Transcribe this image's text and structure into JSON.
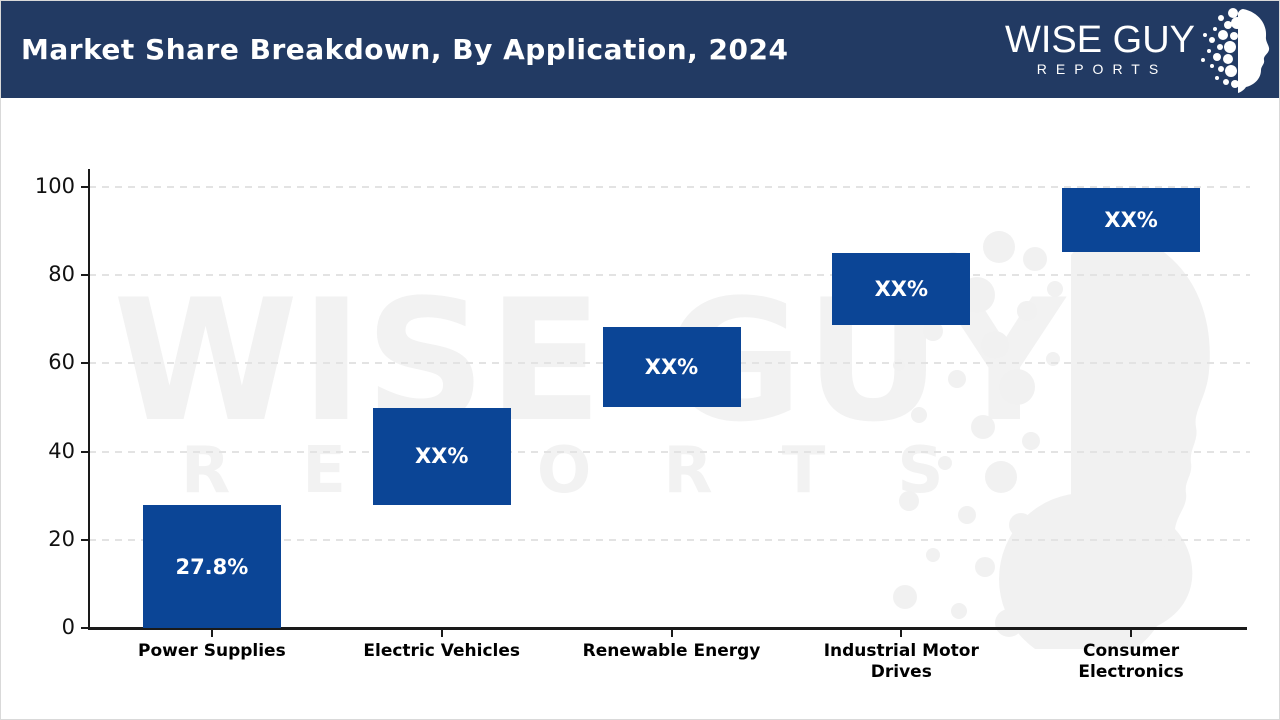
{
  "header": {
    "title": "Market Share Breakdown, By Application, 2024",
    "logo": {
      "line1": "WISE GUY",
      "line2": "REPORTS"
    }
  },
  "watermark": {
    "line1": "WISE GUY",
    "line2": "REPORTS"
  },
  "colors": {
    "header_bg": "#223a63",
    "bar": "#0b4596",
    "grid": "#e3e3e3",
    "axis": "#1a1a1a",
    "bar_label": "#ffffff",
    "watermark": "#f2f2f2"
  },
  "chart_data": {
    "type": "bar",
    "subtype": "waterfall",
    "title": "Market Share Breakdown, By Application, 2024",
    "categories": [
      "Power Supplies",
      "Electric Vehicles",
      "Renewable Energy",
      "Industrial Motor Drives",
      "Consumer Electronics"
    ],
    "category_lines": [
      [
        "Power Supplies"
      ],
      [
        "Electric Vehicles"
      ],
      [
        "Renewable Energy"
      ],
      [
        "Industrial Motor",
        "Drives"
      ],
      [
        "Consumer",
        "Electronics"
      ]
    ],
    "segments": [
      {
        "category": "Power Supplies",
        "start": 0,
        "end": 27.8,
        "label": "27.8%"
      },
      {
        "category": "Electric Vehicles",
        "start": 27.8,
        "end": 50.0,
        "label": "XX%"
      },
      {
        "category": "Renewable Energy",
        "start": 50.0,
        "end": 68.2,
        "label": "XX%"
      },
      {
        "category": "Industrial Motor Drives",
        "start": 68.8,
        "end": 85.0,
        "label": "XX%"
      },
      {
        "category": "Consumer Electronics",
        "start": 85.3,
        "end": 99.8,
        "label": "XX%"
      }
    ],
    "xlabel": "",
    "ylabel": "",
    "y_ticks": [
      0,
      20,
      40,
      60,
      80,
      100
    ],
    "ylim": [
      0,
      104
    ],
    "grid": "horizontal-dashed",
    "legend": "none"
  }
}
